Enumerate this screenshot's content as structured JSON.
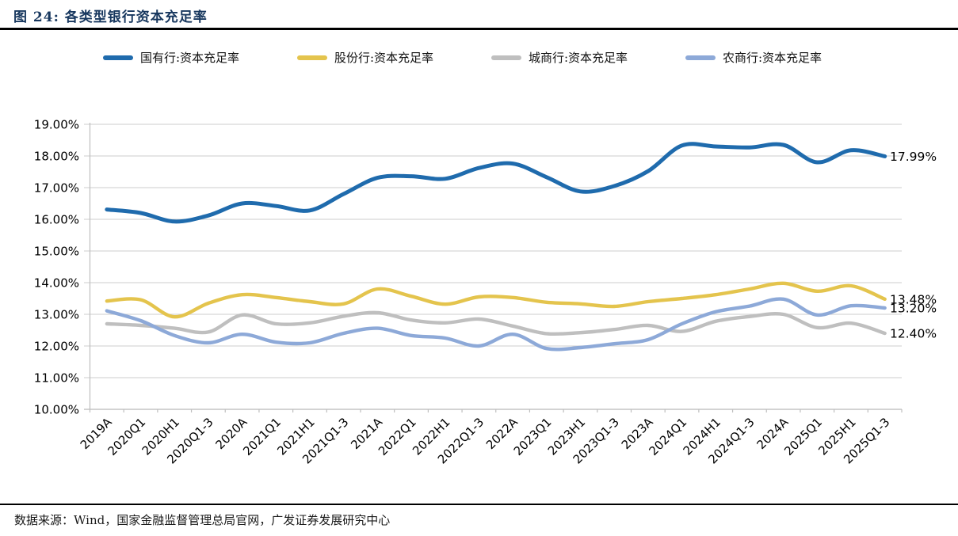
{
  "header": {
    "title": "图 24: 各类型银行资本充足率"
  },
  "legend": {
    "items": [
      {
        "label": "国有行:资本充足率",
        "color": "#1F6BAD"
      },
      {
        "label": "股份行:资本充足率",
        "color": "#E4C44D"
      },
      {
        "label": "城商行:资本充足率",
        "color": "#BFBFBF"
      },
      {
        "label": "农商行:资本充足率",
        "color": "#8DA9D8"
      }
    ]
  },
  "chart_data": {
    "type": "line",
    "title": "各类型银行资本充足率",
    "xlabel": "",
    "ylabel": "",
    "ylim": [
      10,
      19
    ],
    "grid": true,
    "legend_position": "top",
    "yticks": [
      "19.00%",
      "18.00%",
      "17.00%",
      "16.00%",
      "15.00%",
      "14.00%",
      "13.00%",
      "12.00%",
      "11.00%",
      "10.00%"
    ],
    "categories": [
      "2019A",
      "2020Q1",
      "2020H1",
      "2020Q1-3",
      "2020A",
      "2021Q1",
      "2021H1",
      "2021Q1-3",
      "2021A",
      "2022Q1",
      "2022H1",
      "2022Q1-3",
      "2022A",
      "2023Q1",
      "2023H1",
      "2023Q1-3",
      "2023A",
      "2024Q1",
      "2024H1",
      "2024Q1-3",
      "2024A",
      "2025Q1",
      "2025H1",
      "2025Q1-3"
    ],
    "series": [
      {
        "name": "国有行:资本充足率",
        "color": "#1F6BAD",
        "width": 5,
        "end_label": "17.99%",
        "values": [
          16.31,
          16.2,
          15.93,
          16.12,
          16.5,
          16.42,
          16.28,
          16.8,
          17.31,
          17.36,
          17.28,
          17.62,
          17.76,
          17.33,
          16.88,
          17.05,
          17.52,
          18.33,
          18.3,
          18.27,
          18.35,
          17.8,
          18.18,
          17.99
        ]
      },
      {
        "name": "股份行:资本充足率",
        "color": "#E4C44D",
        "width": 4.4,
        "end_label": "13.48%",
        "values": [
          13.42,
          13.46,
          12.92,
          13.35,
          13.62,
          13.53,
          13.4,
          13.33,
          13.8,
          13.57,
          13.32,
          13.55,
          13.53,
          13.38,
          13.33,
          13.25,
          13.4,
          13.5,
          13.62,
          13.8,
          13.98,
          13.73,
          13.9,
          13.48
        ]
      },
      {
        "name": "城商行:资本充足率",
        "color": "#BFBFBF",
        "width": 4.4,
        "end_label": "12.40%",
        "values": [
          12.7,
          12.65,
          12.56,
          12.44,
          12.98,
          12.7,
          12.73,
          12.94,
          13.05,
          12.82,
          12.73,
          12.85,
          12.63,
          12.39,
          12.42,
          12.52,
          12.65,
          12.46,
          12.78,
          12.93,
          13.0,
          12.58,
          12.72,
          12.4
        ]
      },
      {
        "name": "农商行:资本充足率",
        "color": "#8DA9D8",
        "width": 4.4,
        "end_label": "13.20%",
        "values": [
          13.11,
          12.8,
          12.33,
          12.1,
          12.37,
          12.12,
          12.1,
          12.4,
          12.56,
          12.33,
          12.25,
          12.0,
          12.37,
          11.92,
          11.95,
          12.07,
          12.2,
          12.7,
          13.08,
          13.26,
          13.48,
          12.98,
          13.27,
          13.2
        ]
      }
    ]
  },
  "footer": {
    "source": "数据来源：Wind，国家金融监督管理总局官网，广发证券发展研究中心"
  }
}
